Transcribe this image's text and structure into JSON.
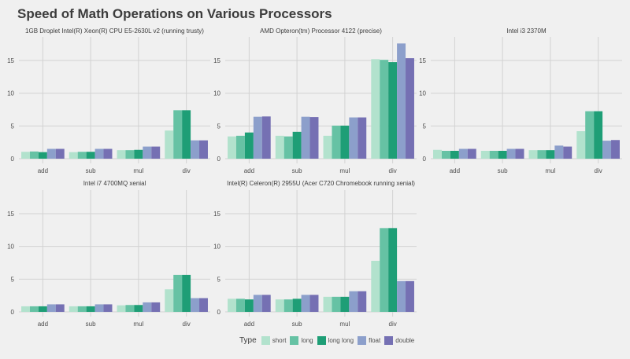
{
  "chart_data": {
    "type": "bar",
    "title": "Speed of Math Operations on Various Processors",
    "xlabel": "",
    "ylabel": "",
    "ylim": [
      0,
      18.6
    ],
    "yticks": [
      0,
      5,
      10,
      15
    ],
    "grid": true,
    "legend": {
      "title": "Type",
      "position": "bottom"
    },
    "categories": [
      "add",
      "sub",
      "mul",
      "div"
    ],
    "series_names": [
      "short",
      "long",
      "long long",
      "float",
      "double"
    ],
    "colors": {
      "short": "#b2e2cd",
      "long": "#66c2a4",
      "long long": "#1e9e76",
      "float": "#8c9fcb",
      "double": "#7570b3"
    },
    "panels": [
      {
        "title": "1GB Droplet Intel(R) Xeon(R) CPU E5-2630L v2 (running trusty)",
        "series": [
          {
            "name": "short",
            "values": [
              1.05,
              1.0,
              1.3,
              4.3
            ]
          },
          {
            "name": "long",
            "values": [
              1.1,
              1.05,
              1.3,
              7.4
            ]
          },
          {
            "name": "long long",
            "values": [
              1.0,
              1.05,
              1.35,
              7.4
            ]
          },
          {
            "name": "float",
            "values": [
              1.5,
              1.5,
              1.85,
              2.8
            ]
          },
          {
            "name": "double",
            "values": [
              1.5,
              1.5,
              1.85,
              2.8
            ]
          }
        ]
      },
      {
        "title": "AMD Opteron(tm) Processor 4122 (precise)",
        "series": [
          {
            "name": "short",
            "values": [
              3.4,
              3.5,
              3.5,
              15.2
            ]
          },
          {
            "name": "long",
            "values": [
              3.5,
              3.4,
              5.05,
              15.1
            ]
          },
          {
            "name": "long long",
            "values": [
              4.0,
              4.1,
              5.05,
              14.75
            ]
          },
          {
            "name": "float",
            "values": [
              6.4,
              6.4,
              6.3,
              17.6
            ]
          },
          {
            "name": "double",
            "values": [
              6.45,
              6.35,
              6.3,
              15.35
            ]
          }
        ]
      },
      {
        "title": "Intel i3 2370M",
        "series": [
          {
            "name": "short",
            "values": [
              1.35,
              1.2,
              1.3,
              4.2
            ]
          },
          {
            "name": "long",
            "values": [
              1.2,
              1.2,
              1.3,
              7.25
            ]
          },
          {
            "name": "long long",
            "values": [
              1.2,
              1.2,
              1.3,
              7.25
            ]
          },
          {
            "name": "float",
            "values": [
              1.5,
              1.5,
              2.0,
              2.75
            ]
          },
          {
            "name": "double",
            "values": [
              1.5,
              1.5,
              1.85,
              2.85
            ]
          }
        ]
      },
      {
        "title": "Intel i7 4700MQ xenial",
        "series": [
          {
            "name": "short",
            "values": [
              0.85,
              0.85,
              1.0,
              3.45
            ]
          },
          {
            "name": "long",
            "values": [
              0.85,
              0.85,
              1.05,
              5.65
            ]
          },
          {
            "name": "long long",
            "values": [
              0.85,
              0.85,
              1.05,
              5.65
            ]
          },
          {
            "name": "float",
            "values": [
              1.15,
              1.15,
              1.45,
              2.1
            ]
          },
          {
            "name": "double",
            "values": [
              1.15,
              1.15,
              1.45,
              2.1
            ]
          }
        ]
      },
      {
        "title": "Intel(R) Celeron(R) 2955U (Acer C720 Chromebook running xenial)",
        "series": [
          {
            "name": "short",
            "values": [
              2.0,
              1.9,
              2.3,
              7.8
            ]
          },
          {
            "name": "long",
            "values": [
              2.0,
              1.9,
              2.3,
              12.8
            ]
          },
          {
            "name": "long long",
            "values": [
              1.9,
              2.0,
              2.3,
              12.8
            ]
          },
          {
            "name": "float",
            "values": [
              2.6,
              2.6,
              3.15,
              4.7
            ]
          },
          {
            "name": "double",
            "values": [
              2.6,
              2.6,
              3.15,
              4.7
            ]
          }
        ]
      }
    ]
  }
}
